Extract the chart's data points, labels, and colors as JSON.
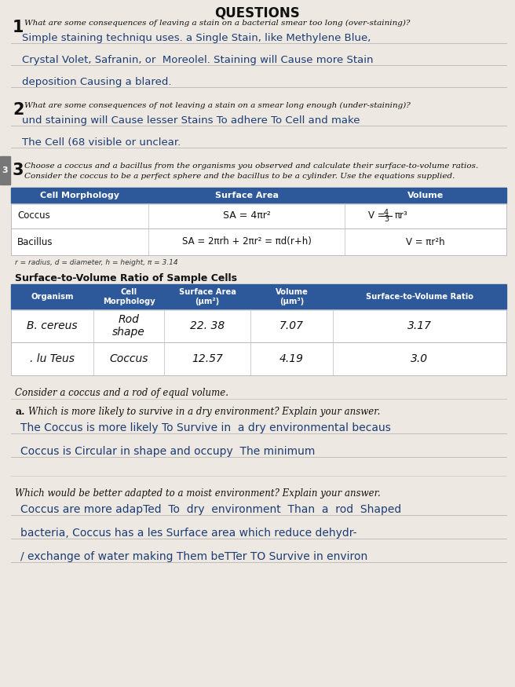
{
  "bg_color": "#ede9e2",
  "page_bg": "#ede9e2",
  "title": "QUESTIONS",
  "title_fontsize": 12,
  "q1_prompt": "What are some consequences of leaving a stain on a bacterial smear too long (over-staining)?",
  "q1_line1": "Simple staining techniqu uses. a Single Stain, like Methylene Blue,",
  "q1_line2": "Crystal Volet, Safranin, or  Moreolel. Staining will Cause more Stain",
  "q1_line3": "deposition Causing a blared.",
  "q2_prompt": "What are some consequences of not leaving a stain on a smear long enough (under-staining)?",
  "q2_line1": "und staining will Cause lesser Stains To adhere To Cell and make",
  "q2_line2": "The Cell (68 visible or unclear.",
  "q3_prompt_line1": "Choose a coccus and a bacillus from the organisms you observed and calculate their surface-to-volume ratios.",
  "q3_prompt_line2": "Consider the coccus to be a perfect sphere and the bacillus to be a cylinder. Use the equations supplied.",
  "table1_header_bg": "#2d5899",
  "table1_col1": "Cell Morphology",
  "table1_col2": "Surface Area",
  "table1_col3": "Volume",
  "table1_row1_c1": "Coccus",
  "table1_row1_c2": "SA = 4πr²",
  "table1_row2_c1": "Bacillus",
  "table1_row2_c2": "SA = 2πrh + 2πr² = πd(r+h)",
  "table1_row2_c3": "V = πr²h",
  "table1_note": "r = radius, d = diameter, h = height, π = 3.14",
  "table2_title": "Surface-to-Volume Ratio of Sample Cells",
  "table2_header_bg": "#2d5899",
  "table2_col1": "Organism",
  "table2_col2": "Cell\nMorphology",
  "table2_col3": "Surface Area\n(μm²)",
  "table2_col4": "Volume\n(μm³)",
  "table2_col5": "Surface-to-Volume Ratio",
  "table2_row1": [
    "B. cereus",
    "Rod\nshape",
    "22. 38",
    "7.07",
    "3.17"
  ],
  "table2_row2": [
    ". lu Teus",
    "Coccus",
    "12.57",
    "4.19",
    "3.0"
  ],
  "consider_text": "Consider a coccus and a rod of equal volume.",
  "qa_label": "a.",
  "qa_prompt": "Which is more likely to survive in a dry environment? Explain your answer.",
  "qa_line1": "The Coccus is more likely To Survive in  a dry environmental becaus",
  "qa_line2": "Coccus is Circular in shape and occupy  The minimum",
  "qb_prompt": "Which would be better adapted to a moist environment? Explain your answer.",
  "qb_line1": "Coccus are more adapTed  To  dry  environment  Than  a  rod  Shaped",
  "qb_line2": "bacteria, Coccus has a les Surface area which reduce dehydr-",
  "qb_line3": "/ exchange of water making Them beTTer TO Survive in environ"
}
